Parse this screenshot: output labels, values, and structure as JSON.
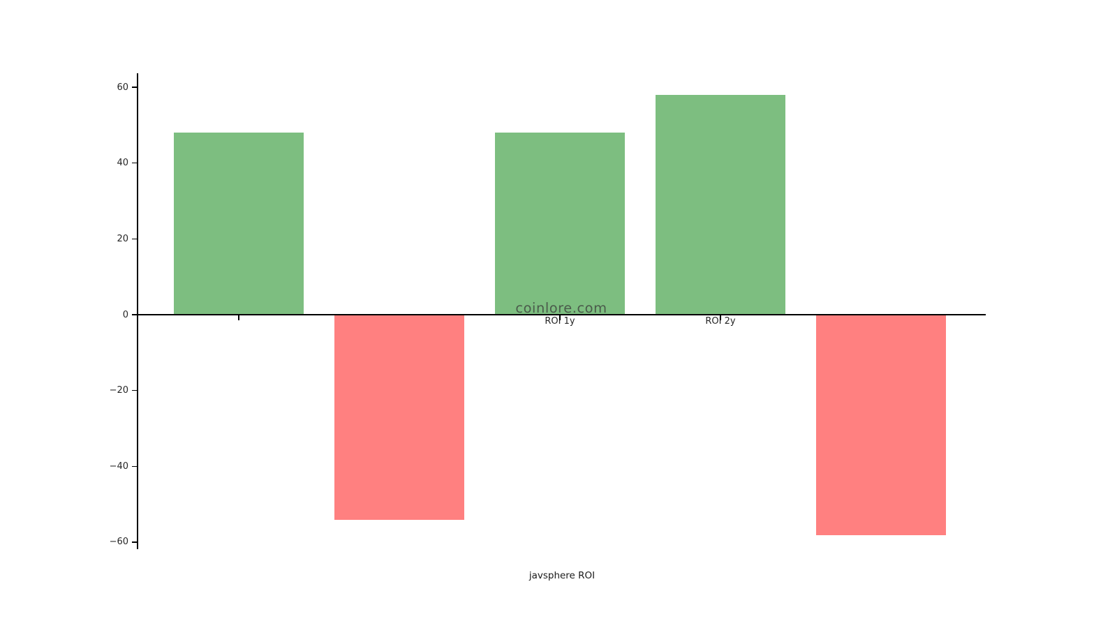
{
  "chart_data": {
    "type": "bar",
    "title": "javsphere ROI",
    "watermark": "coinlore.com",
    "categories": [
      "",
      "",
      "ROI 1y",
      "ROI 2y",
      ""
    ],
    "values": [
      48,
      -54,
      48,
      58,
      -58
    ],
    "tick_visible": [
      true,
      false,
      true,
      true,
      false
    ],
    "yticks": [
      {
        "value": 60,
        "label": "60"
      },
      {
        "value": 40,
        "label": "40"
      },
      {
        "value": 20,
        "label": "20"
      },
      {
        "value": 0,
        "label": "0"
      },
      {
        "value": -20,
        "label": "−20"
      },
      {
        "value": -40,
        "label": "−40"
      },
      {
        "value": -60,
        "label": "−60"
      }
    ],
    "ylim": [
      -62,
      64
    ],
    "grid": false,
    "legend": null,
    "colors": {
      "positive": "#7dbe80",
      "negative": "#ff8080",
      "axis": "#000000",
      "text": "#262626",
      "watermark": "#424a42"
    }
  }
}
